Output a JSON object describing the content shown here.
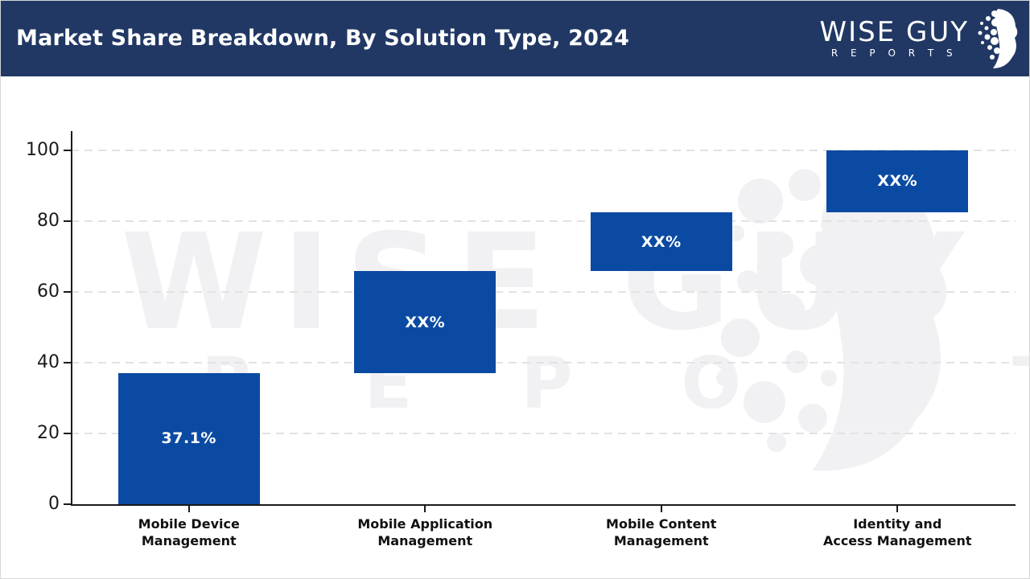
{
  "header": {
    "title": "Market Share Breakdown, By Solution Type, 2024",
    "logo": {
      "line1": "WISE GUY",
      "line2": "R E P O R T S"
    }
  },
  "watermark": {
    "line1": "WISE GUY",
    "line2": "R E P O R T S"
  },
  "chart_data": {
    "type": "bar",
    "subtype": "floating-stacked-breakdown",
    "title": "Market Share Breakdown, By Solution Type, 2024",
    "categories": [
      "Mobile Device Management",
      "Mobile Application Management",
      "Mobile Content Management",
      "Identity and Access Management"
    ],
    "category_lines": [
      [
        "Mobile Device",
        "Management"
      ],
      [
        "Mobile Application",
        "Management"
      ],
      [
        "Mobile Content",
        "Management"
      ],
      [
        "Identity and",
        "Access Management"
      ]
    ],
    "segments": [
      {
        "from": 0,
        "to": 37.1,
        "label": "37.1%"
      },
      {
        "from": 37.1,
        "to": 65.8,
        "label": "XX%"
      },
      {
        "from": 65.8,
        "to": 82.6,
        "label": "XX%"
      },
      {
        "from": 82.6,
        "to": 100,
        "label": "XX%"
      }
    ],
    "xlabel": "",
    "ylabel": "",
    "ylim": [
      0,
      100
    ],
    "yticks": [
      0,
      20,
      40,
      60,
      80,
      100
    ],
    "grid": "horizontal-dashed",
    "legend": "none",
    "colors": {
      "header_bg": "#213864",
      "header_text": "#ffffff",
      "bar": "#0b4aa2",
      "bar_label": "#ffffff",
      "grid": "#e2e2e2",
      "axis": "#1a1a1a",
      "tick_text": "#1a1a1a",
      "watermark": "#f1f1f4"
    }
  }
}
